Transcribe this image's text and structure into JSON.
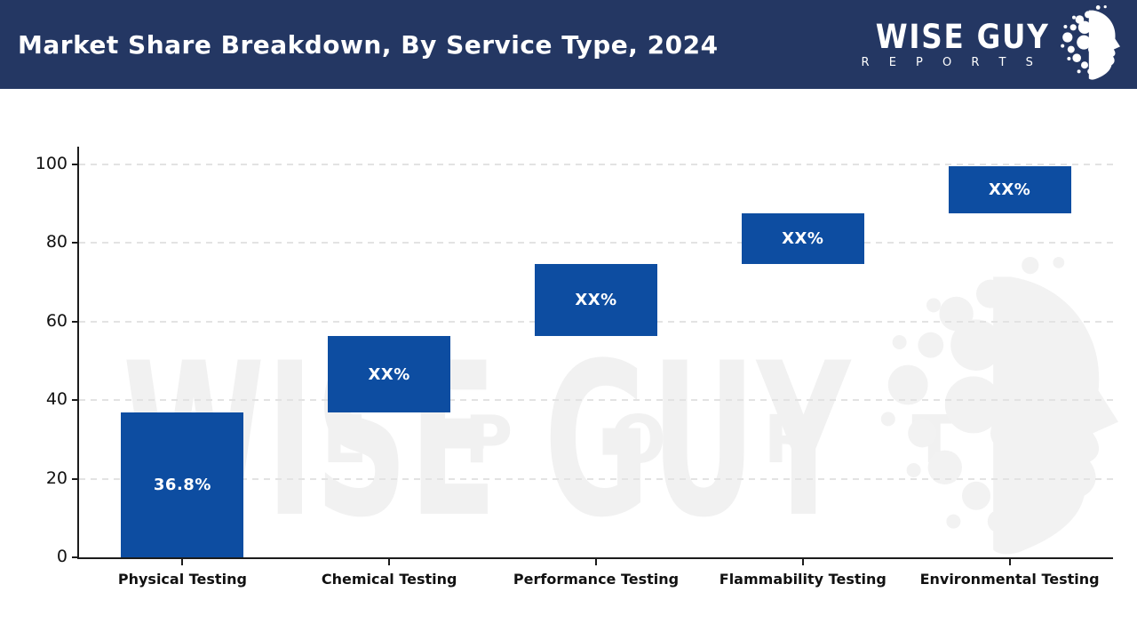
{
  "header": {
    "title": "Market Share Breakdown, By Service Type, 2024",
    "logo": {
      "line1": "WISE GUY",
      "line2": "R E P O R T S"
    }
  },
  "watermark": {
    "line1": "WISE GUY",
    "line2": "R E P O R T S"
  },
  "colors": {
    "header_bg": "#243763",
    "bar": "#0d4da1",
    "bar_label": "#ffffff",
    "axis": "#1c1c1c",
    "grid": "#e3e3e3",
    "watermark": "#f1f1f1"
  },
  "chart_data": {
    "type": "bar",
    "subtype": "waterfall",
    "title": "Market Share Breakdown, By Service Type, 2024",
    "xlabel": "",
    "ylabel": "",
    "ylim": [
      0,
      104.5
    ],
    "yticks": [
      0,
      20,
      40,
      60,
      80,
      100
    ],
    "grid": "horizontal-dashed",
    "legend": "none",
    "categories": [
      "Physical Testing",
      "Chemical Testing",
      "Performance Testing",
      "Flammability Testing",
      "Environmental Testing"
    ],
    "segments": [
      {
        "category": "Physical Testing",
        "start": 0,
        "end": 36.8,
        "label": "36.8%"
      },
      {
        "category": "Chemical Testing",
        "start": 36.8,
        "end": 56.3,
        "label": "XX%"
      },
      {
        "category": "Performance Testing",
        "start": 56.3,
        "end": 74.7,
        "label": "XX%"
      },
      {
        "category": "Flammability Testing",
        "start": 74.7,
        "end": 87.6,
        "label": "XX%"
      },
      {
        "category": "Environmental Testing",
        "start": 87.6,
        "end": 99.5,
        "label": "XX%"
      }
    ]
  }
}
